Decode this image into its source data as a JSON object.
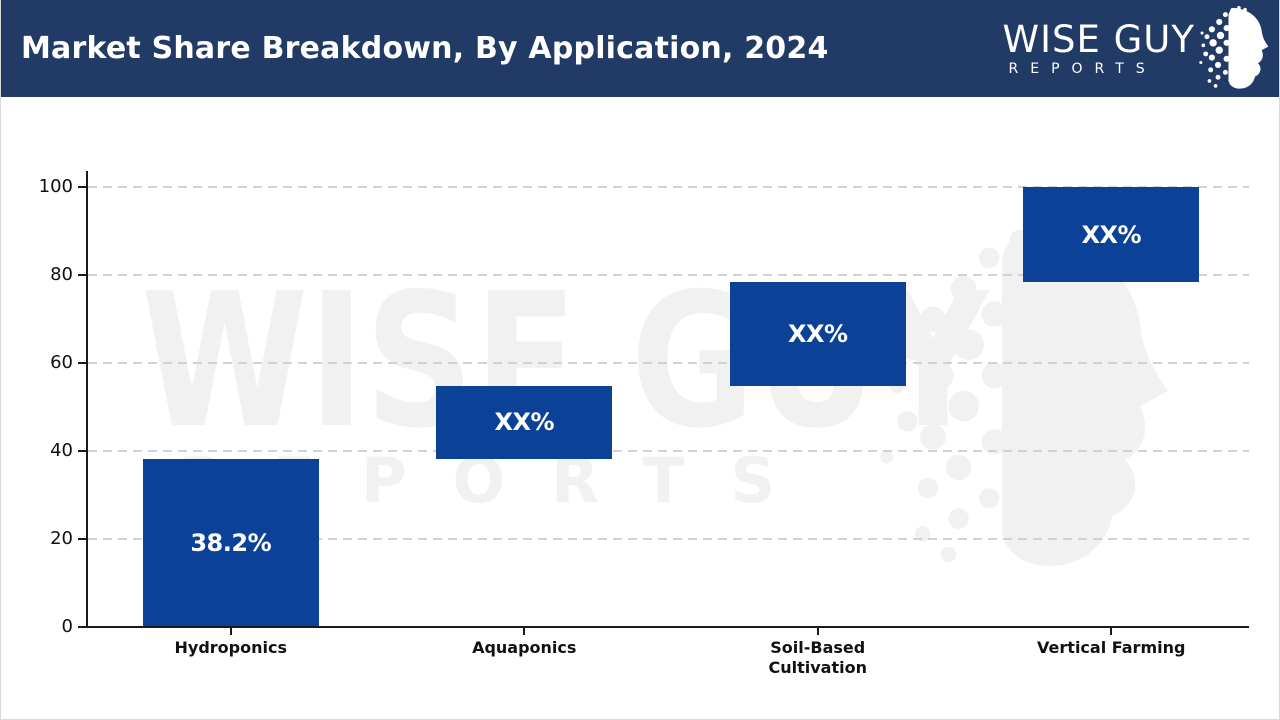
{
  "header": {
    "title": "Market Share Breakdown, By Application, 2024",
    "logo": {
      "wordmark": "WISE GUY",
      "tagline": "REPORTS"
    }
  },
  "watermark": {
    "wordmark": "WISE GUY",
    "tagline": "REPORTS"
  },
  "chart_data": {
    "type": "bar",
    "variant": "waterfall-breakdown",
    "title": "Market Share Breakdown, By Application, 2024",
    "xlabel": "",
    "ylabel": "",
    "categories": [
      "Hydroponics",
      "Aquaponics",
      "Soil-Based\nCultivation",
      "Vertical Farming"
    ],
    "bars": [
      {
        "category": "Hydroponics",
        "start": 0,
        "end": 38.2,
        "label": "38.2%"
      },
      {
        "category": "Aquaponics",
        "start": 38.2,
        "end": 54.8,
        "label": "XX%"
      },
      {
        "category": "Soil-Based\nCultivation",
        "start": 54.8,
        "end": 78.4,
        "label": "XX%"
      },
      {
        "category": "Vertical Farming",
        "start": 78.4,
        "end": 100,
        "label": "XX%"
      }
    ],
    "yticks": [
      0,
      20,
      40,
      60,
      80,
      100
    ],
    "ylim": [
      0,
      103.5
    ],
    "grid": "dashed-horizontal",
    "legend": "none",
    "bar_color": "#0b4298",
    "bar_label_color": "#ffffff"
  },
  "colors": {
    "header_bg": "#223a66",
    "bar": "#0b4298",
    "grid": "#d2d2d2",
    "watermark": "#f1f1f1",
    "axis": "#1a1a1a",
    "text": "#111111",
    "page_bg": "#ffffff",
    "border": "#d9d9d9"
  }
}
